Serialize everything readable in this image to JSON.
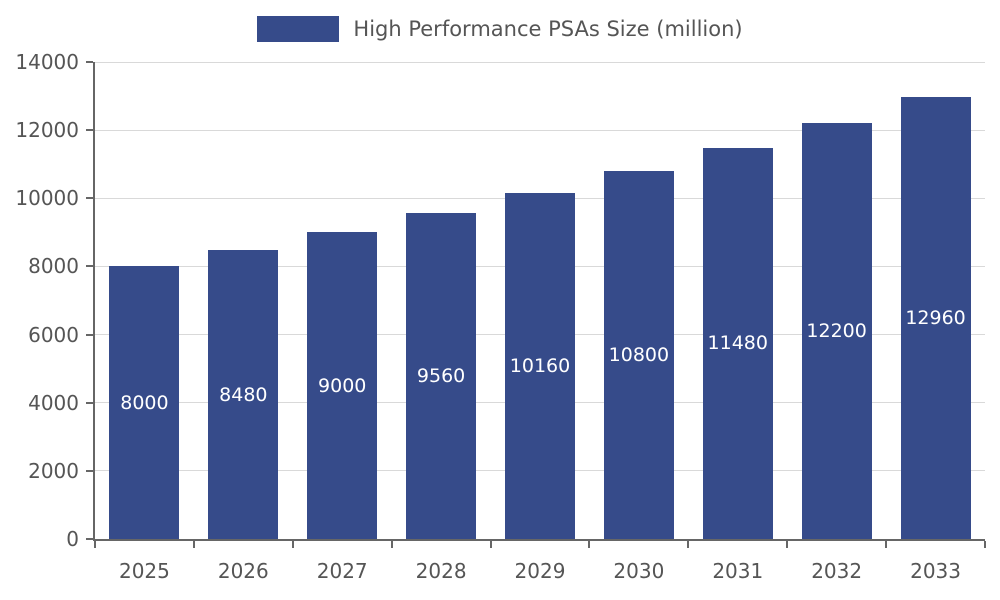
{
  "chart_data": {
    "type": "bar",
    "title": "High Performance PSAs Size (million)",
    "categories": [
      "2025",
      "2026",
      "2027",
      "2028",
      "2029",
      "2030",
      "2031",
      "2032",
      "2033"
    ],
    "values": [
      8000,
      8480,
      9000,
      9560,
      10160,
      10800,
      11480,
      12200,
      12960
    ],
    "xlabel": "",
    "ylabel": "",
    "ylim": [
      0,
      14000
    ],
    "y_ticks": [
      0,
      2000,
      4000,
      6000,
      8000,
      10000,
      12000,
      14000
    ],
    "grid": true,
    "legend_position": "top-center",
    "value_labels": "inside-center",
    "colors": {
      "bar": "#364B8A",
      "bar_label_text": "#ffffff",
      "axis_text": "#555555",
      "grid_line": "#d9d9d9",
      "axis_line": "#666666",
      "background": "#ffffff"
    }
  }
}
